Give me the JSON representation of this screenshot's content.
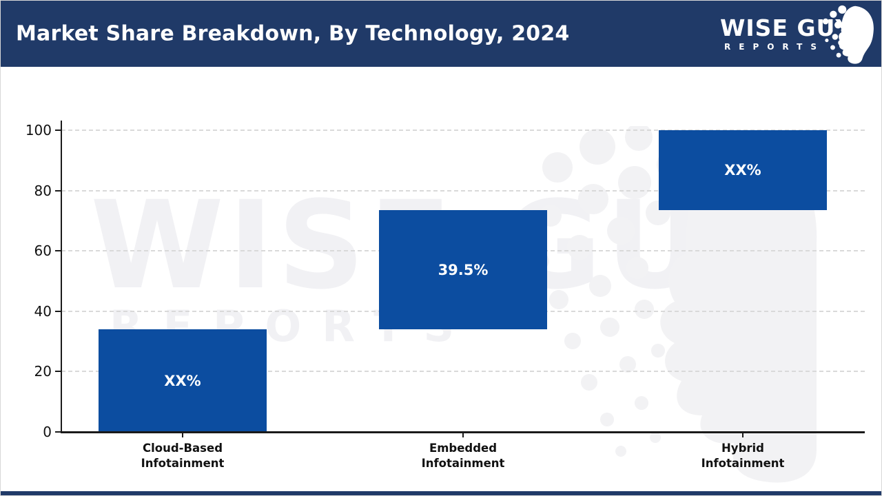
{
  "header": {
    "title": "Market Share Breakdown, By Technology, 2024",
    "logo": {
      "brand": "WISE GUY",
      "sub": "REPORTS",
      "icon": "wiseguy-dotted-head"
    }
  },
  "watermark": {
    "brand": "WISE GUY",
    "sub": "REPORTS"
  },
  "chart_data": {
    "type": "bar",
    "subtype": "floating_stacked_percent_segments",
    "title": "Market Share Breakdown, By Technology, 2024",
    "categories": [
      "Cloud-Based Infotainment",
      "Embedded Infotainment",
      "Hybrid Infotainment"
    ],
    "category_lines": [
      [
        "Cloud-Based",
        "Infotainment"
      ],
      [
        "Embedded",
        "Infotainment"
      ],
      [
        "Hybrid",
        "Infotainment"
      ]
    ],
    "segments": [
      {
        "category": "Cloud-Based Infotainment",
        "start": 0,
        "end": 34,
        "label": "XX%"
      },
      {
        "category": "Embedded Infotainment",
        "start": 34,
        "end": 73.5,
        "label": "39.5%"
      },
      {
        "category": "Hybrid Infotainment",
        "start": 73.5,
        "end": 100,
        "label": "XX%"
      }
    ],
    "yticks": [
      0,
      20,
      40,
      60,
      80,
      100
    ],
    "ylim": [
      0,
      100
    ],
    "xlabel": "",
    "ylabel": "",
    "legend": "none",
    "grid": {
      "horizontal": true,
      "style": "dashed"
    },
    "bar_color": "#0c4da0",
    "bar_label_color": "#ffffff"
  },
  "colors": {
    "header_bg": "#203a68",
    "footer_bg": "#203a68",
    "bar": "#0c4da0",
    "axis": "#1a1a1a",
    "grid": "#d9d9d9",
    "watermark": "#f1f1f4",
    "text": "#111111",
    "border": "#d8d8d8"
  }
}
